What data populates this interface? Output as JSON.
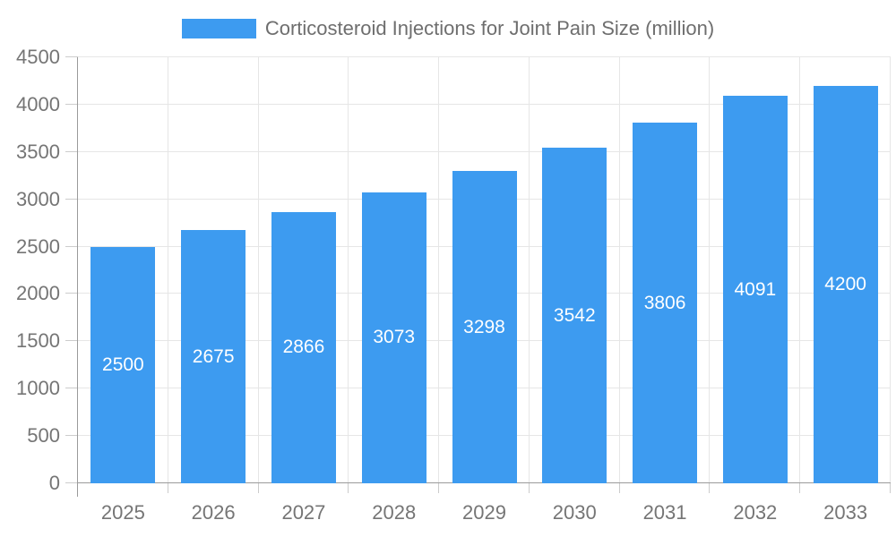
{
  "chart_data": {
    "type": "bar",
    "title": "",
    "legend": {
      "position": "top",
      "entries": [
        "Corticosteroid Injections for Joint Pain Size (million)"
      ]
    },
    "series": [
      {
        "name": "Corticosteroid Injections for Joint Pain Size (million)",
        "values": [
          2500,
          2675,
          2866,
          3073,
          3298,
          3542,
          3806,
          4091,
          4200
        ]
      }
    ],
    "categories": [
      "2025",
      "2026",
      "2027",
      "2028",
      "2029",
      "2030",
      "2031",
      "2032",
      "2033"
    ],
    "value_labels_shown": true,
    "xlabel": "",
    "ylabel": "",
    "ylim": [
      0,
      4500
    ],
    "ytick_step": 500,
    "y_ticks": [
      "0",
      "500",
      "1000",
      "1500",
      "2000",
      "2500",
      "3000",
      "3500",
      "4000",
      "4500"
    ],
    "grid": true,
    "colors": {
      "bar": "#3D9BF0",
      "bar_value_label": "#ffffff",
      "gridline": "#e6e6e6",
      "axis_line": "#9a9a9a",
      "tick_mark": "#cccccc",
      "tick_label": "#757575",
      "legend_text": "#6e6e6e",
      "background": "#ffffff"
    }
  }
}
